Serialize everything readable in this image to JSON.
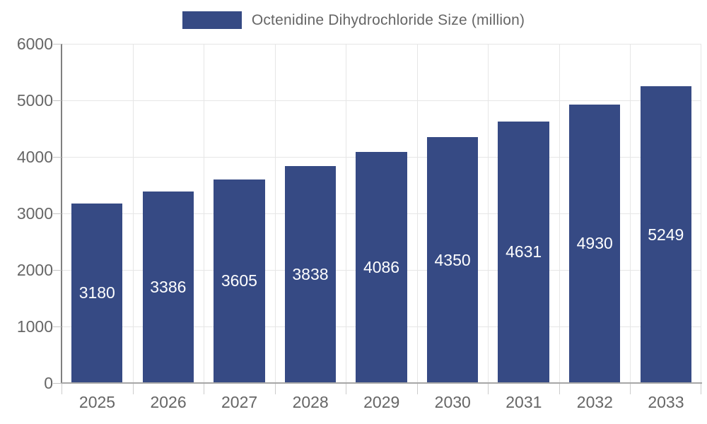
{
  "chart_data": {
    "type": "bar",
    "title": "Octenidine Dihydrochloride Size (million)",
    "categories": [
      "2025",
      "2026",
      "2027",
      "2028",
      "2029",
      "2030",
      "2031",
      "2032",
      "2033"
    ],
    "values": [
      3180,
      3386,
      3605,
      3838,
      4086,
      4350,
      4631,
      4930,
      5249
    ],
    "xlabel": "",
    "ylabel": "",
    "ylim": [
      0,
      6000
    ],
    "ytick_step": 1000,
    "grid": true,
    "legend_position": "top-center",
    "bar_color": "#364a84",
    "value_label_color": "#ffffff",
    "axis_text_color": "#666666",
    "gridline_color": "#e6e6e6"
  }
}
